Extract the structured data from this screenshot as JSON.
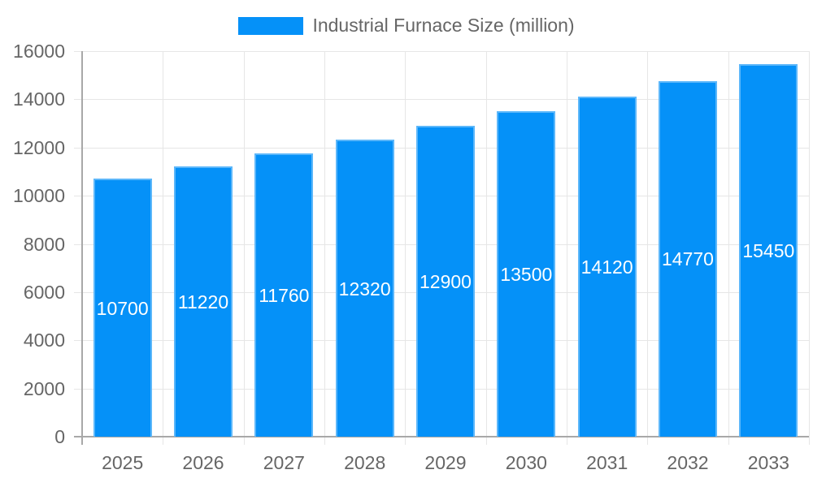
{
  "chart_data": {
    "type": "bar",
    "title": "Industrial Furnace Size (million)",
    "xlabel": "",
    "ylabel": "",
    "categories": [
      "2025",
      "2026",
      "2027",
      "2028",
      "2029",
      "2030",
      "2031",
      "2032",
      "2033"
    ],
    "series": [
      {
        "name": "Industrial Furnace Size (million)",
        "values": [
          10700,
          11220,
          11760,
          12320,
          12900,
          13500,
          14120,
          14770,
          15450
        ]
      }
    ],
    "value_labels": [
      "10700",
      "11220",
      "11760",
      "12320",
      "12900",
      "13500",
      "14120",
      "14770",
      "15450"
    ],
    "ylim": [
      0,
      16000
    ],
    "yticks": [
      0,
      2000,
      4000,
      6000,
      8000,
      10000,
      12000,
      14000,
      16000
    ],
    "grid": true,
    "legend_position": "top",
    "value_label_position": "center-inside",
    "colors": {
      "bar": "#0591f8",
      "bar_edge_highlight": "rgba(255,255,255,0.35)",
      "gridline": "#e6e6e6",
      "axis_line": "#a8a8a8",
      "tick_text": "#666666",
      "bar_label_text": "#ffffff",
      "background": "#ffffff"
    }
  }
}
